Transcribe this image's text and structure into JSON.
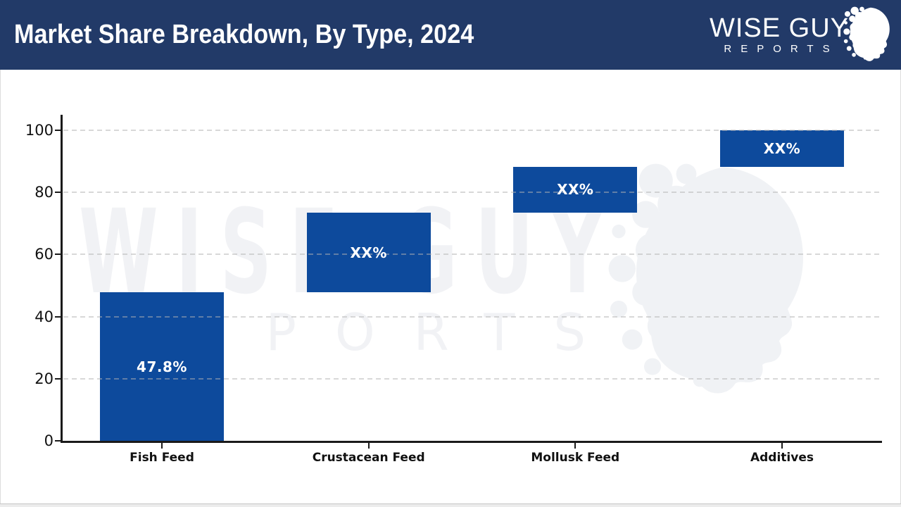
{
  "header": {
    "title": "Market Share Breakdown, By Type, 2024",
    "logo": {
      "line1": "WISE GUY",
      "line2": "REPORTS"
    }
  },
  "watermark": {
    "line1": "WISE GUY",
    "line2": "REPORTS"
  },
  "colors": {
    "header_bg": "#223a68",
    "bar_fill": "#0d4a9c",
    "bar_label_text": "#ffffff",
    "axis": "#1a1a1a",
    "gridline": "#d9d9d9",
    "watermark": "#f1f2f5"
  },
  "chart_data": {
    "type": "bar",
    "subtype": "waterfall",
    "title": "Market Share Breakdown, By Type, 2024",
    "categories": [
      "Fish Feed",
      "Crustacean Feed",
      "Mollusk Feed",
      "Additives"
    ],
    "segments": [
      {
        "category": "Fish Feed",
        "start": 0,
        "end": 47.8,
        "value_label": "47.8%"
      },
      {
        "category": "Crustacean Feed",
        "start": 47.8,
        "end": 73.5,
        "value_label": "XX%"
      },
      {
        "category": "Mollusk Feed",
        "start": 73.5,
        "end": 88.2,
        "value_label": "XX%"
      },
      {
        "category": "Additives",
        "start": 88.2,
        "end": 100,
        "value_label": "XX%"
      }
    ],
    "y_ticks": [
      0,
      20,
      40,
      60,
      80,
      100
    ],
    "ylim": [
      0,
      105
    ],
    "xlabel": "",
    "ylabel": "",
    "grid": "horizontal-dashed",
    "legend": null
  }
}
